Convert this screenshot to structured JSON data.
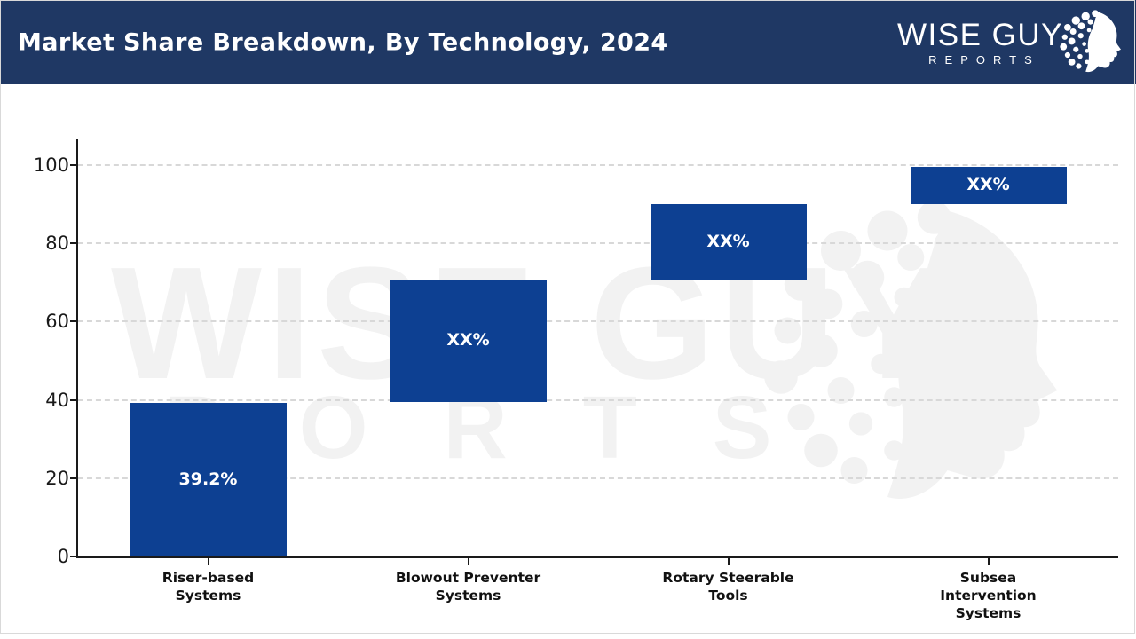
{
  "header": {
    "title": "Market Share Breakdown, By Technology, 2024",
    "bg_color": "#1f3864",
    "logo": {
      "name": "WISE GUY",
      "sub": "REPORTS"
    }
  },
  "watermark": {
    "line1": "WISE GUY",
    "line2": "PORTS"
  },
  "chart_data": {
    "type": "bar",
    "subtype": "waterfall",
    "title": "Market Share Breakdown, By Technology, 2024",
    "categories": [
      "Riser-based\nSystems",
      "Blowout Preventer\nSystems",
      "Rotary Steerable\nTools",
      "Subsea\nIntervention\nSystems"
    ],
    "segments": [
      {
        "category": "Riser-based Systems",
        "start": 0,
        "end": 39.2,
        "label": "39.2%"
      },
      {
        "category": "Blowout Preventer Systems",
        "start": 39.5,
        "end": 70.5,
        "label": "XX%"
      },
      {
        "category": "Rotary Steerable Tools",
        "start": 70.5,
        "end": 90,
        "label": "XX%"
      },
      {
        "category": "Subsea Intervention Systems",
        "start": 90,
        "end": 99.5,
        "label": "XX%"
      }
    ],
    "ylabel": "",
    "xlabel": "",
    "yticks": [
      0,
      20,
      40,
      60,
      80,
      100
    ],
    "ylim": [
      0,
      107
    ],
    "grid": "horizontal-dashed",
    "legend": "none",
    "bar_color": "#0d4092",
    "bar_label_color": "#ffffff",
    "gridline_color": "#d8d8d8",
    "axis_color": "#1a1a1a"
  }
}
